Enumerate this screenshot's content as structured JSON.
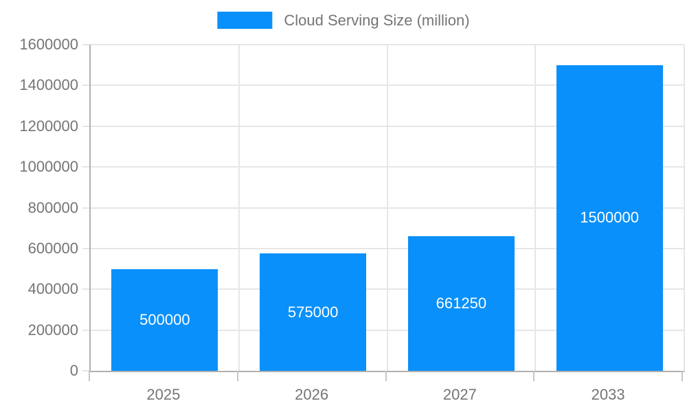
{
  "chart_data": {
    "type": "bar",
    "title": "",
    "legend_label": "Cloud Serving Size (million)",
    "legend_position": "top",
    "categories": [
      "2025",
      "2026",
      "2027",
      "2033"
    ],
    "series": [
      {
        "name": "Cloud Serving Size (million)",
        "values": [
          500000,
          575000,
          661250,
          1500000
        ],
        "data_labels": [
          "500000",
          "575000",
          "661250",
          "1500000"
        ]
      }
    ],
    "xlabel": "",
    "ylabel": "",
    "ylim": [
      0,
      1600000
    ],
    "yticks": [
      0,
      200000,
      400000,
      600000,
      800000,
      1000000,
      1200000,
      1400000,
      1600000
    ],
    "ytick_labels": [
      "0",
      "200000",
      "400000",
      "600000",
      "800000",
      "1000000",
      "1200000",
      "1400000",
      "1600000"
    ],
    "grid": true,
    "vertical_grid_at_category_boundaries": true,
    "bar_label_position": "center"
  },
  "colors": {
    "bar": "#0990fa",
    "axis_text": "#757575",
    "legend_text": "#757575",
    "gridline": "#e6e6e6",
    "axis_line": "#b0b0b0",
    "tick": "#c6c6c6",
    "bar_label": "#ffffff",
    "background": "#ffffff"
  }
}
